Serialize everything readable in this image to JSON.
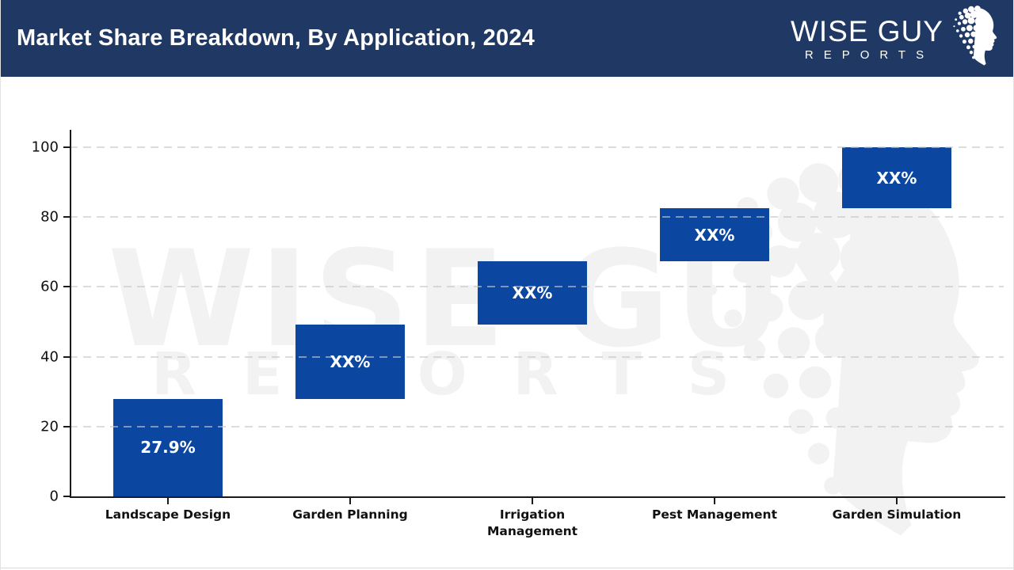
{
  "header": {
    "title": "Market Share Breakdown, By Application, 2024",
    "logo": {
      "line1": "WISE GUY",
      "line2": "REPORTS"
    }
  },
  "watermark": {
    "line1": "WISE GUY",
    "line2": "REPORTS"
  },
  "colors": {
    "header_bg": "#1f3864",
    "bar": "#0b47a1",
    "bar_label_text": "#ffffff",
    "grid": "#c6c6c6",
    "axis": "#1a1a1a",
    "watermark": "#f2f2f2"
  },
  "chart_data": {
    "type": "bar",
    "subtype": "waterfall",
    "title": "Market Share Breakdown, By Application, 2024",
    "categories": [
      "Landscape Design",
      "Garden Planning",
      "Irrigation Management",
      "Pest Management",
      "Garden Simulation"
    ],
    "segments": [
      {
        "category": "Landscape Design",
        "start": 0,
        "end": 27.9,
        "label": "27.9%"
      },
      {
        "category": "Garden Planning",
        "start": 27.9,
        "end": 49.2,
        "label": "XX%"
      },
      {
        "category": "Irrigation Management",
        "start": 49.2,
        "end": 67.3,
        "label": "XX%"
      },
      {
        "category": "Pest Management",
        "start": 67.3,
        "end": 82.5,
        "label": "XX%"
      },
      {
        "category": "Garden Simulation",
        "start": 82.5,
        "end": 100,
        "label": "XX%"
      }
    ],
    "ylim": [
      0,
      105
    ],
    "yticks": [
      0,
      20,
      40,
      60,
      80,
      100
    ],
    "grid": "horizontal dashed, drawn over bars",
    "legend": "none",
    "xlabel": "",
    "ylabel": ""
  }
}
